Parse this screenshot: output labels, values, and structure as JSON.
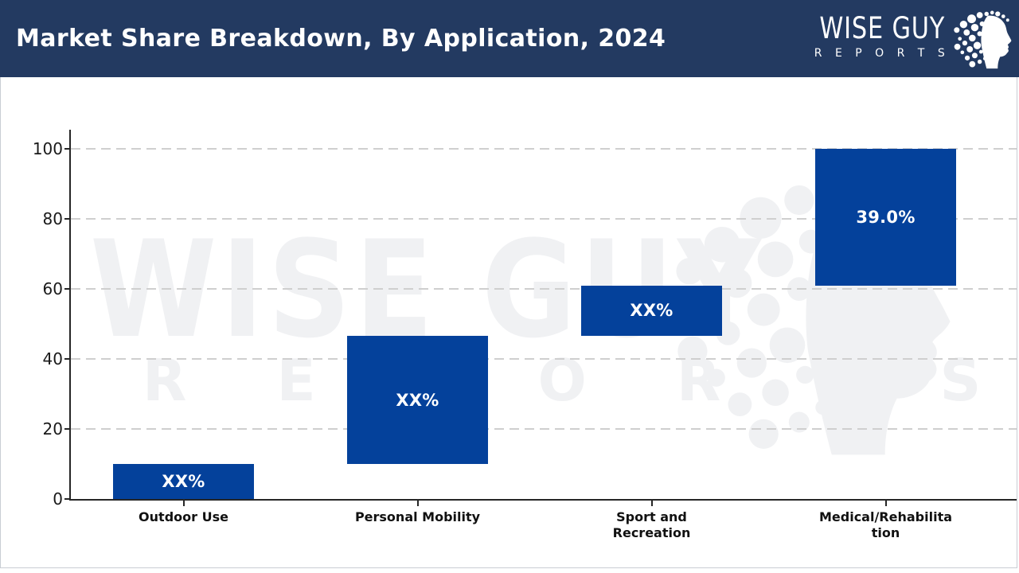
{
  "header": {
    "title": "Market Share Breakdown, By Application, 2024",
    "logo": {
      "wordmark": "WISE GUY",
      "subtext": "R E P O R T S"
    }
  },
  "watermark": {
    "wordmark": "WISE GUY",
    "subtext": "R E P O R T S"
  },
  "chart_data": {
    "type": "bar",
    "subtype": "waterfall",
    "title": "Market Share Breakdown, By Application, 2024",
    "categories": [
      "Outdoor Use",
      "Personal Mobility",
      "Sport and Recreation",
      "Medical/Rehabilitation"
    ],
    "category_tick_lines": [
      [
        "Outdoor Use"
      ],
      [
        "Personal Mobility"
      ],
      [
        "Sport and",
        "Recreation"
      ],
      [
        "Medical/Rehabilita",
        "tion"
      ]
    ],
    "segments": [
      {
        "category": "Outdoor Use",
        "start": 0,
        "end": 10,
        "label": "XX%"
      },
      {
        "category": "Personal Mobility",
        "start": 10,
        "end": 46.5,
        "label": "XX%"
      },
      {
        "category": "Sport and Recreation",
        "start": 46.5,
        "end": 61,
        "label": "XX%"
      },
      {
        "category": "Medical/Rehabilitation",
        "start": 61,
        "end": 100,
        "label": "39.0%"
      }
    ],
    "xlabel": "",
    "ylabel": "",
    "ylim": [
      0,
      100
    ],
    "yticks": [
      0,
      20,
      40,
      60,
      80,
      100
    ],
    "grid": "horizontal-dashed",
    "legend": "none",
    "bar_color": "#04419b",
    "bar_label_color": "#ffffff"
  },
  "colors": {
    "header_bg": "#233a61",
    "bar": "#04419b",
    "grid": "#cfcfcf",
    "axis": "#262626",
    "watermark": "#f0f1f3"
  }
}
